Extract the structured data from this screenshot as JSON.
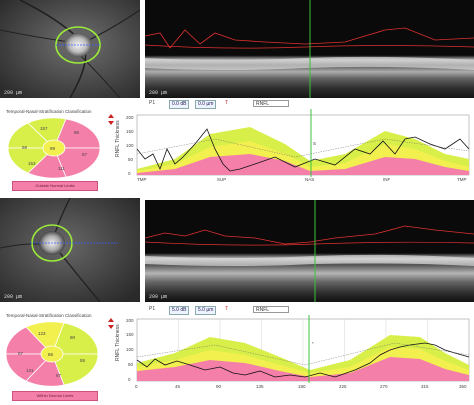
{
  "panel1": {
    "fundus_scale": "200 µm",
    "oct_scale": "200 µm",
    "toolbar": {
      "label_left": "P1",
      "btn1": "0.0 dB",
      "btn2": "0.0 µm",
      "select_value": "RNFL",
      "marker_label": "T"
    },
    "classification_title": "Temporal-Nasal-Stratification Classification",
    "classification_legend": "Outside Normal Limits",
    "ylabel": "RNFL Thickness",
    "xticks": [
      "TMP",
      "SUP",
      "NAS",
      "INF",
      "TMP"
    ],
    "yticks": [
      "0",
      "50",
      "100",
      "150",
      "200"
    ],
    "sectors": {
      "T": "98",
      "TS": "157",
      "NS": "96",
      "N": "67",
      "NI": "111",
      "TI": "153",
      "G": "99"
    },
    "position_marker": "S"
  },
  "panel2": {
    "fundus_scale": "200 µm",
    "oct_scale": "200 µm",
    "toolbar": {
      "label_left": "P1",
      "btn1": "5.0 dB",
      "btn2": "5.0 µm",
      "select_value": "RNFL",
      "marker_label": "T"
    },
    "classification_title": "Temporal-Nasal-Stratification Classification",
    "classification_legend": "Within Normal Limits",
    "ylabel": "RNFL Thickness",
    "xticks": [
      "0",
      "45",
      "90",
      "135",
      "180",
      "225",
      "270",
      "315",
      "360"
    ],
    "yticks": [
      "0",
      "50",
      "100",
      "150",
      "200"
    ],
    "sectors": {
      "T": "87",
      "TS": "123",
      "NS": "90",
      "N": "55",
      "NI": "97",
      "TI": "131",
      "G": "86"
    },
    "position_marker": "*"
  },
  "colors": {
    "normal_band": "#d8ef4a",
    "border_band": "#f2f04f",
    "outside_band": "#f47fa8",
    "measured_line": "#111111",
    "scan_marker": "#3cc13c",
    "segmentation": "#e03030"
  }
}
